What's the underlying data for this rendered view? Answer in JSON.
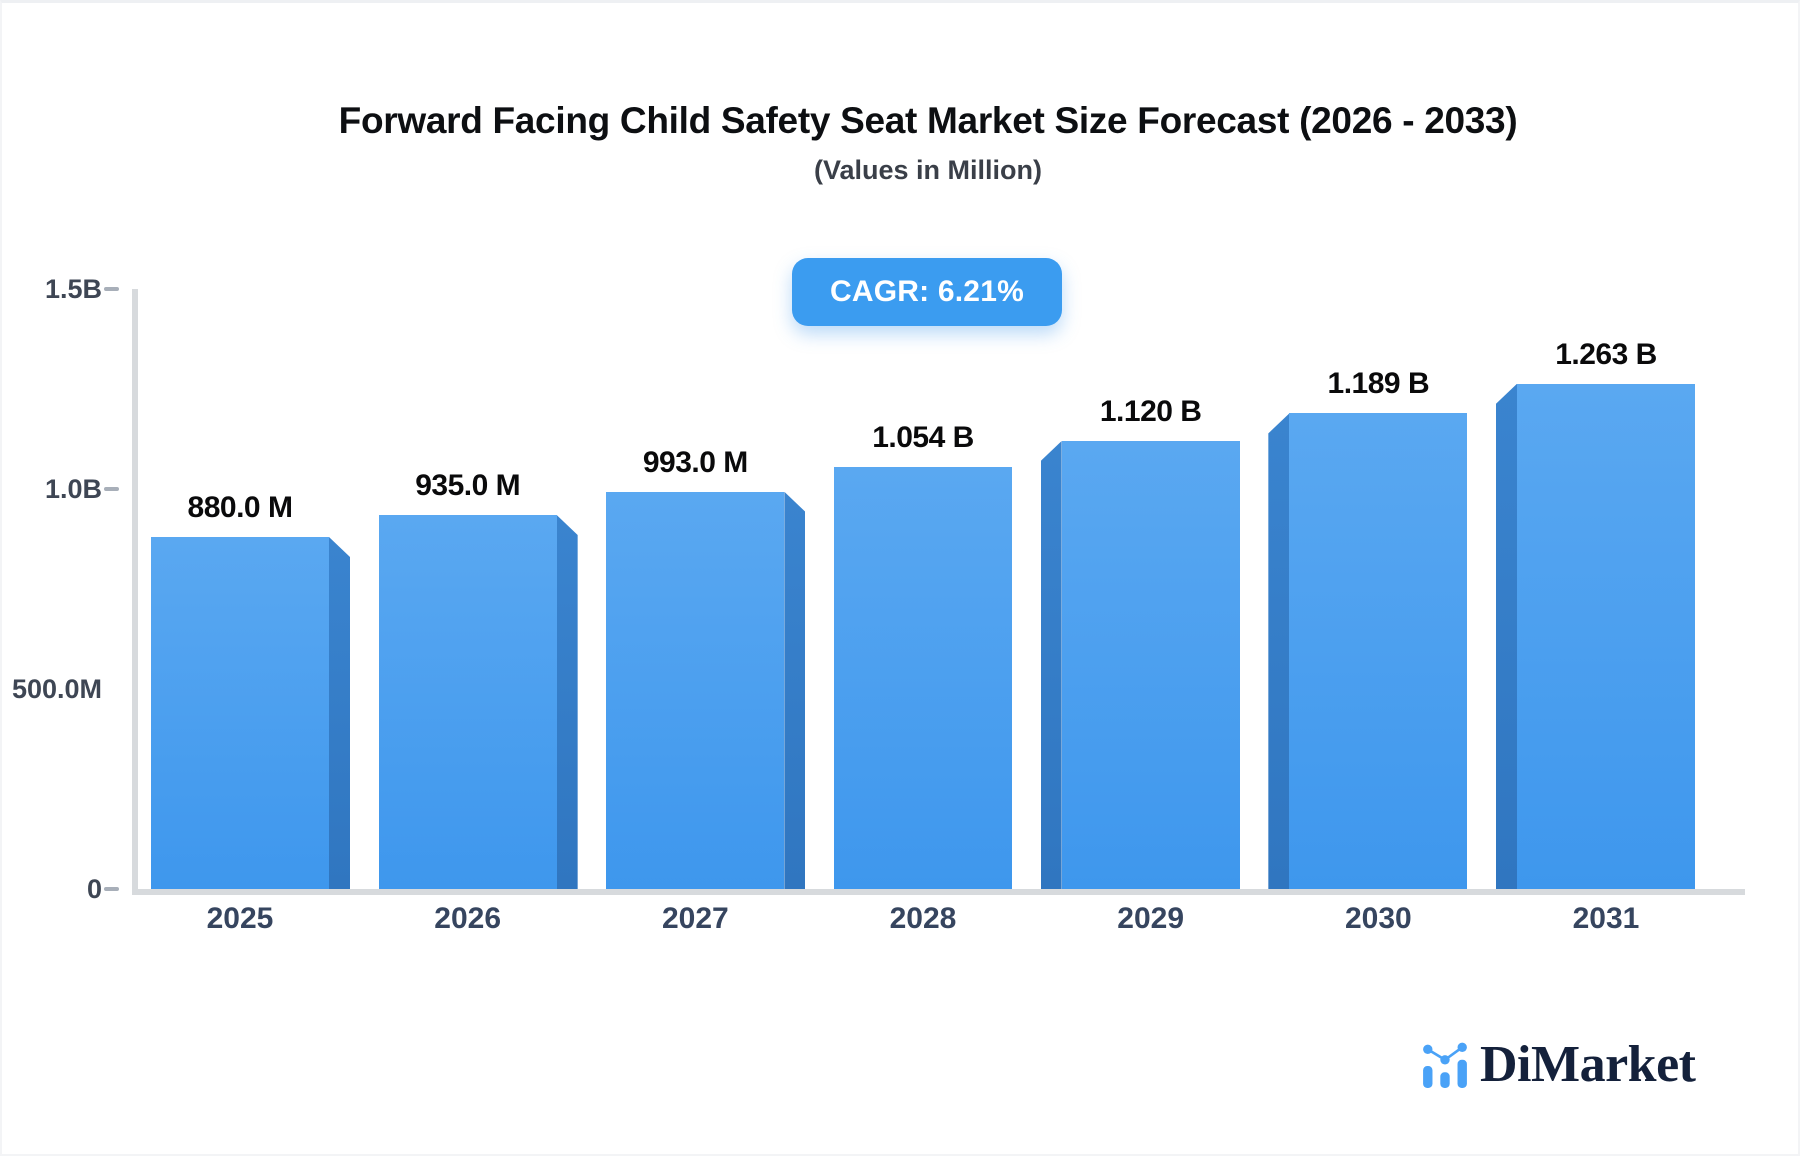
{
  "title": "Forward Facing Child Safety Seat Market Size Forecast (2026 - 2033)",
  "subtitle": "(Values in Million)",
  "badge": {
    "label": "CAGR: 6.21%"
  },
  "colors": {
    "accent": "#3b9cf0",
    "bar_face_top": "#5aa8f1",
    "bar_face_bottom": "#3e97ed",
    "bar_side": "#3076c0",
    "bar_side_light": "#3a84cf",
    "axis": "#d7dadd",
    "logo_navy": "#14213b",
    "logo_blue": "#4aa2f7"
  },
  "chart_data": {
    "type": "bar",
    "title": "Forward Facing Child Safety Seat Market Size Forecast (2026 - 2033)",
    "subtitle": "(Values in Million)",
    "annotation": "CAGR: 6.21%",
    "categories": [
      "2025",
      "2026",
      "2027",
      "2028",
      "2029",
      "2030",
      "2031"
    ],
    "values_millions": [
      880.0,
      935.0,
      993.0,
      1054.0,
      1120.0,
      1189.0,
      1263.0
    ],
    "value_labels": [
      "880.0 M",
      "935.0 M",
      "993.0 M",
      "1.054 B",
      "1.120 B",
      "1.189 B",
      "1.263 B"
    ],
    "xlabel": "",
    "ylabel": "",
    "ylim_millions": [
      0,
      1500
    ],
    "grid": false,
    "legend": false,
    "y_ticks": [
      {
        "label": "1.5B",
        "value_millions": 1500,
        "tick_mark": true
      },
      {
        "label": "1.0B",
        "value_millions": 1000,
        "tick_mark": true
      },
      {
        "label": "500.0M",
        "value_millions": 500,
        "tick_mark": false
      },
      {
        "label": "0",
        "value_millions": 0,
        "tick_mark": true
      }
    ]
  },
  "logo": {
    "text": "DiMarket"
  }
}
